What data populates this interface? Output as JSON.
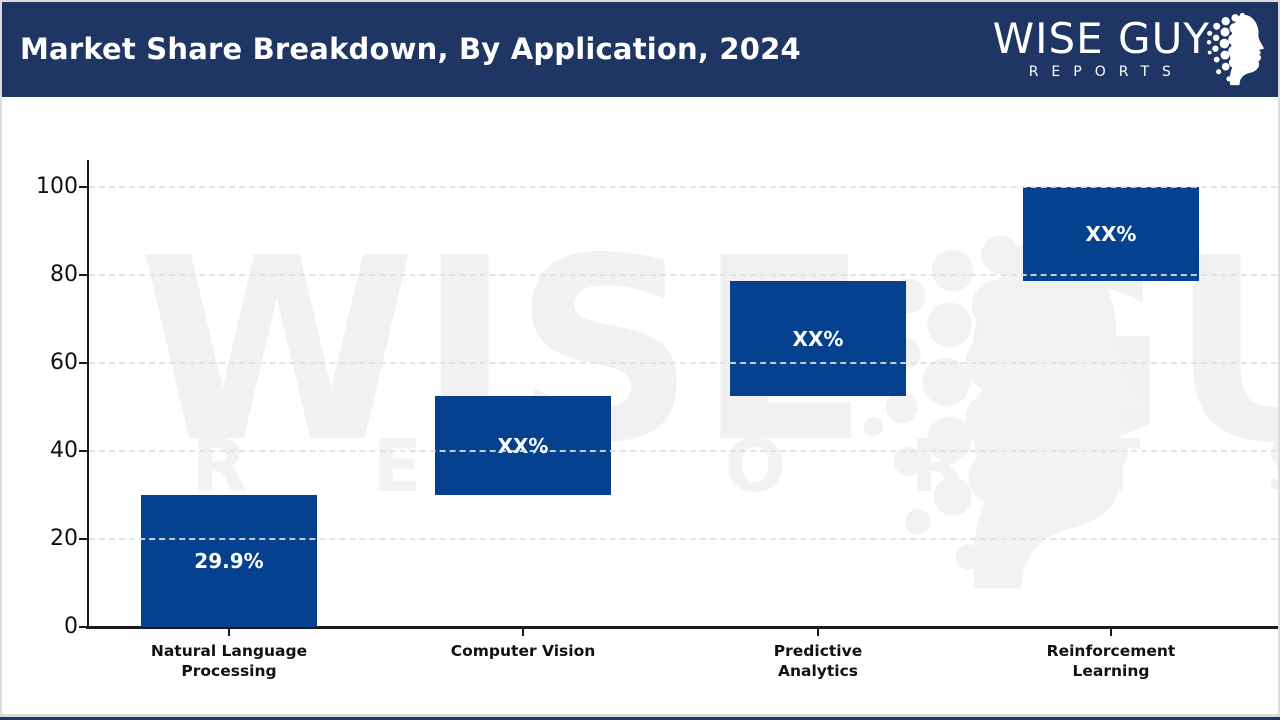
{
  "header": {
    "title": "Market Share Breakdown, By Application, 2024",
    "logo": {
      "line1": "WISE GUY",
      "line2": "REPORTS"
    }
  },
  "watermark": {
    "line1": "WISE GUY",
    "line2": "R E P O R T S"
  },
  "colors": {
    "header_bg": "#1f3563",
    "bar": "#05418f",
    "bar_label": "#ffffff",
    "axis": "#1a1a1a",
    "gridline": "#e2e2e2",
    "watermark": "#f1f1f1",
    "footer_line": "#d9d9d9",
    "footer_bar": "#1f3563"
  },
  "chart_data": {
    "type": "waterfall",
    "title": "Market Share Breakdown, By Application, 2024",
    "xlabel": "",
    "ylabel": "",
    "categories": [
      "Natural Language Processing",
      "Computer Vision",
      "Predictive Analytics",
      "Reinforcement Learning"
    ],
    "segments": [
      {
        "label": "Natural Language Processing",
        "label_lines": [
          "Natural Language",
          "Processing"
        ],
        "start": 0,
        "end": 29.9,
        "value": 29.9,
        "value_label": "29.9%"
      },
      {
        "label": "Computer Vision",
        "label_lines": [
          "Computer Vision"
        ],
        "start": 29.9,
        "end": 52.5,
        "value": 22.6,
        "value_label": "XX%"
      },
      {
        "label": "Predictive Analytics",
        "label_lines": [
          "Predictive",
          "Analytics"
        ],
        "start": 52.5,
        "end": 78.6,
        "value": 26.1,
        "value_label": "XX%"
      },
      {
        "label": "Reinforcement Learning",
        "label_lines": [
          "Reinforcement",
          "Learning"
        ],
        "start": 78.6,
        "end": 100,
        "value": 21.4,
        "value_label": "XX%"
      }
    ],
    "ylim": [
      0,
      100
    ],
    "yticks": [
      0,
      20,
      40,
      60,
      80,
      100
    ],
    "grid": "horizontal dashed",
    "legend": "none",
    "bar_color": "#05418f"
  }
}
